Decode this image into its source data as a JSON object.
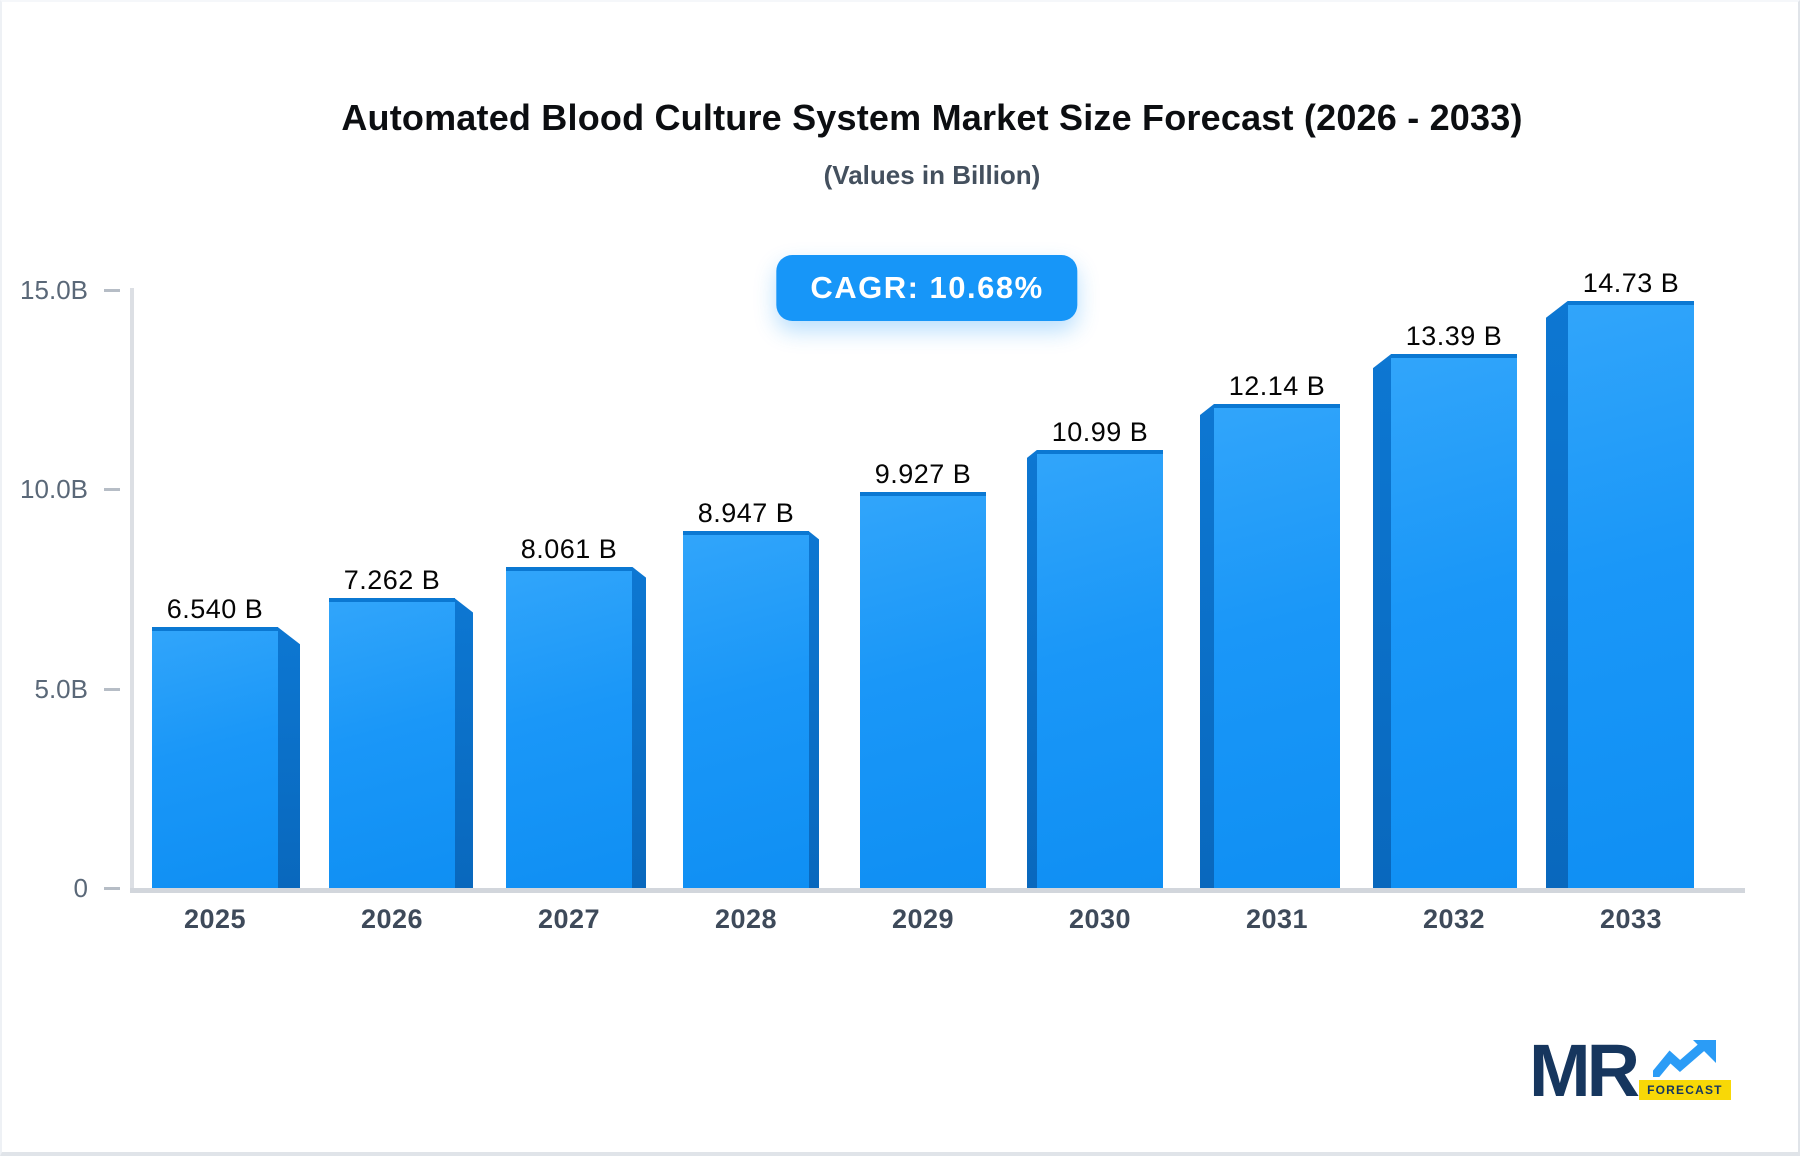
{
  "chart_data": {
    "type": "bar",
    "title": "Automated Blood Culture System Market Size Forecast (2026 - 2033)",
    "subtitle": "(Values in Billion)",
    "cagr_label": "CAGR: 10.68%",
    "categories": [
      "2025",
      "2026",
      "2027",
      "2028",
      "2029",
      "2030",
      "2031",
      "2032",
      "2033"
    ],
    "values": [
      6.54,
      7.262,
      8.061,
      8.947,
      9.927,
      10.99,
      12.14,
      13.39,
      14.73
    ],
    "bar_labels": [
      "6.540 B",
      "7.262 B",
      "8.061 B",
      "8.947 B",
      "9.927 B",
      "10.99 B",
      "12.14 B",
      "13.39 B",
      "14.73 B"
    ],
    "yticks": [
      {
        "label": "15.0B",
        "value": 15.0
      },
      {
        "label": "10.0B",
        "value": 10.0
      },
      {
        "label": "5.0B",
        "value": 5.0
      },
      {
        "label": "0",
        "value": 0
      }
    ],
    "ylim": [
      0,
      15
    ],
    "xlabel": "",
    "ylabel": "",
    "grid": false,
    "legend": false,
    "bar_color": "#1E97F6",
    "bar_side_color": "#0B6FC9"
  },
  "logo": {
    "brand": "MR",
    "sub": "FORECAST",
    "navy": "#16365E",
    "yellow": "#F8D807",
    "arrow_blue": "#2B9CF6"
  },
  "colors": {
    "badge_bg": "#1796F8",
    "badge_text": "#FFFFFF",
    "title": "#0C0E11",
    "subtitle": "#44505E",
    "axis_label": "#5A6878",
    "year_label": "#3E4A5A",
    "value_label": "#050505",
    "axis_line": "#DCDFE4",
    "background": "#FFFFFF"
  }
}
